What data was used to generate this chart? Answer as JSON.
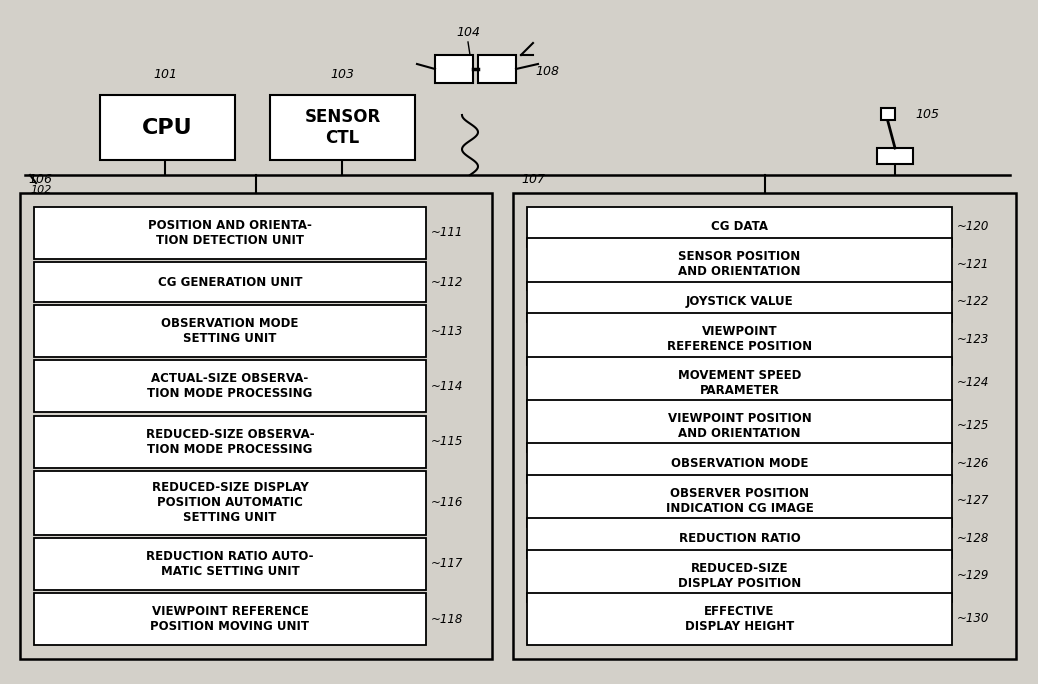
{
  "bg_color": "#d3d0c9",
  "box_facecolor": "#ffffff",
  "box_edgecolor": "#000000",
  "line_color": "#000000",
  "text_color": "#000000",
  "left_boxes": [
    {
      "label": "POSITION AND ORIENTA-\nTION DETECTION UNIT",
      "ref": "~111",
      "lines": 2
    },
    {
      "label": "CG GENERATION UNIT",
      "ref": "~112",
      "lines": 1
    },
    {
      "label": "OBSERVATION MODE\nSETTING UNIT",
      "ref": "~113",
      "lines": 2
    },
    {
      "label": "ACTUAL-SIZE OBSERVA-\nTION MODE PROCESSING",
      "ref": "~114",
      "lines": 2
    },
    {
      "label": "REDUCED-SIZE OBSERVA-\nTION MODE PROCESSING",
      "ref": "~115",
      "lines": 2
    },
    {
      "label": "REDUCED-SIZE DISPLAY\nPOSITION AUTOMATIC\nSETTING UNIT",
      "ref": "~116",
      "lines": 3
    },
    {
      "label": "REDUCTION RATIO AUTO-\nMATIC SETTING UNIT",
      "ref": "~117",
      "lines": 2
    },
    {
      "label": "VIEWPOINT REFERENCE\nPOSITION MOVING UNIT",
      "ref": "~118",
      "lines": 2
    }
  ],
  "right_boxes": [
    {
      "label": "CG DATA",
      "ref": "~120",
      "lines": 1
    },
    {
      "label": "SENSOR POSITION\nAND ORIENTATION",
      "ref": "~121",
      "lines": 2
    },
    {
      "label": "JOYSTICK VALUE",
      "ref": "~122",
      "lines": 1
    },
    {
      "label": "VIEWPOINT\nREFERENCE POSITION",
      "ref": "~123",
      "lines": 2
    },
    {
      "label": "MOVEMENT SPEED\nPARAMETER",
      "ref": "~124",
      "lines": 2
    },
    {
      "label": "VIEWPOINT POSITION\nAND ORIENTATION",
      "ref": "~125",
      "lines": 2
    },
    {
      "label": "OBSERVATION MODE",
      "ref": "~126",
      "lines": 1
    },
    {
      "label": "OBSERVER POSITION\nINDICATION CG IMAGE",
      "ref": "~127",
      "lines": 2
    },
    {
      "label": "REDUCTION RATIO",
      "ref": "~128",
      "lines": 1
    },
    {
      "label": "REDUCED-SIZE\nDISPLAY POSITION",
      "ref": "~129",
      "lines": 2
    },
    {
      "label": "EFFECTIVE\nDISPLAY HEIGHT",
      "ref": "~130",
      "lines": 2
    }
  ]
}
